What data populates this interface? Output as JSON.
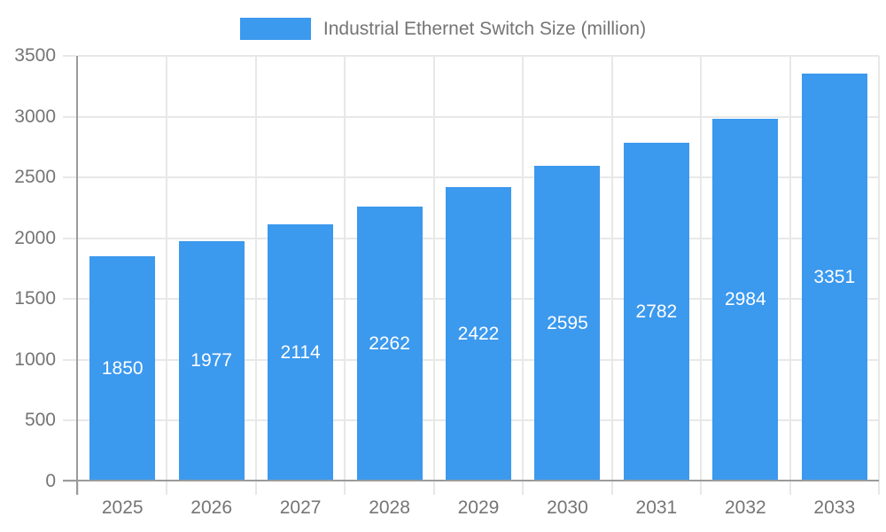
{
  "legend": {
    "label": "Industrial Ethernet Switch Size (million)"
  },
  "chart_data": {
    "type": "bar",
    "title": "Industrial Ethernet Switch Size (million)",
    "categories": [
      "2025",
      "2026",
      "2027",
      "2028",
      "2029",
      "2030",
      "2031",
      "2032",
      "2033"
    ],
    "values": [
      1850,
      1977,
      2114,
      2262,
      2422,
      2595,
      2782,
      2984,
      3351
    ],
    "xlabel": "",
    "ylabel": "",
    "ylim": [
      0,
      3500
    ],
    "ytick_step": 500,
    "y_tick_labels": [
      "0",
      "500",
      "1000",
      "1500",
      "2000",
      "2500",
      "3000",
      "3500"
    ],
    "grid": true,
    "legend_position": "top",
    "value_labels": "centered-white",
    "colors": {
      "bar": "#3b99ee",
      "value_label": "#ffffff",
      "axis_text": "#757575",
      "axis_line": "#9b9b9b",
      "gridline": "#e8e8e8"
    }
  }
}
